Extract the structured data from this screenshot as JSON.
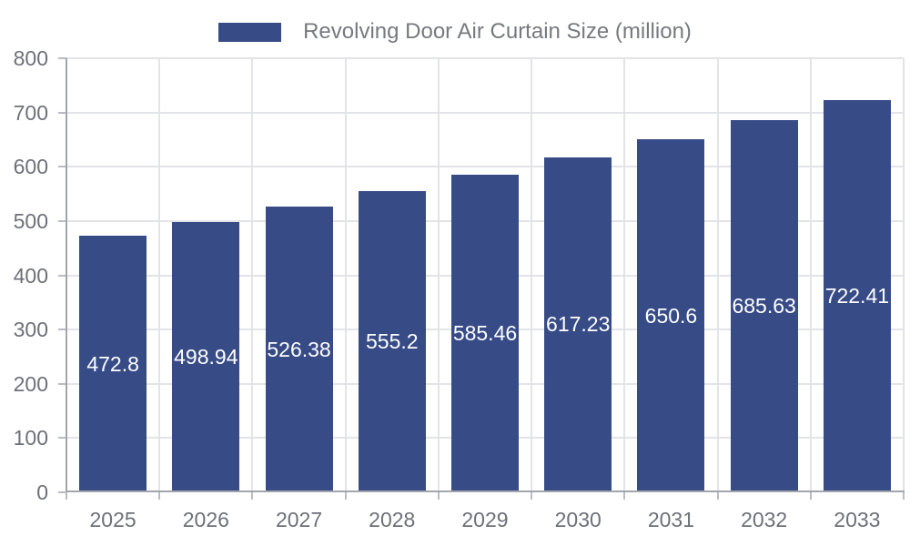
{
  "chart_data": {
    "type": "bar",
    "title": "Revolving Door Air Curtain Size (million)",
    "categories": [
      "2025",
      "2026",
      "2027",
      "2028",
      "2029",
      "2030",
      "2031",
      "2032",
      "2033"
    ],
    "values": [
      472.8,
      498.94,
      526.38,
      555.2,
      585.46,
      617.23,
      650.6,
      685.63,
      722.41
    ],
    "value_labels": [
      "472.8",
      "498.94",
      "526.38",
      "555.2",
      "585.46",
      "617.23",
      "650.6",
      "685.63",
      "722.41"
    ],
    "xlabel": "",
    "ylabel": "",
    "ylim": [
      0,
      800
    ],
    "yticks": [
      0,
      100,
      200,
      300,
      400,
      500,
      600,
      700,
      800
    ],
    "grid": true,
    "legend_position": "top",
    "bar_label_position": "inside-center",
    "colors": {
      "bar": "#374B87",
      "bar_label": "#FFFFFF",
      "grid": "#E3E4E8",
      "axis_line": "#A2A5AD",
      "tick": "#B9BCC4",
      "axis_text": "#6E7079",
      "legend_text": "#76797E",
      "background": "#FFFFFF"
    }
  }
}
